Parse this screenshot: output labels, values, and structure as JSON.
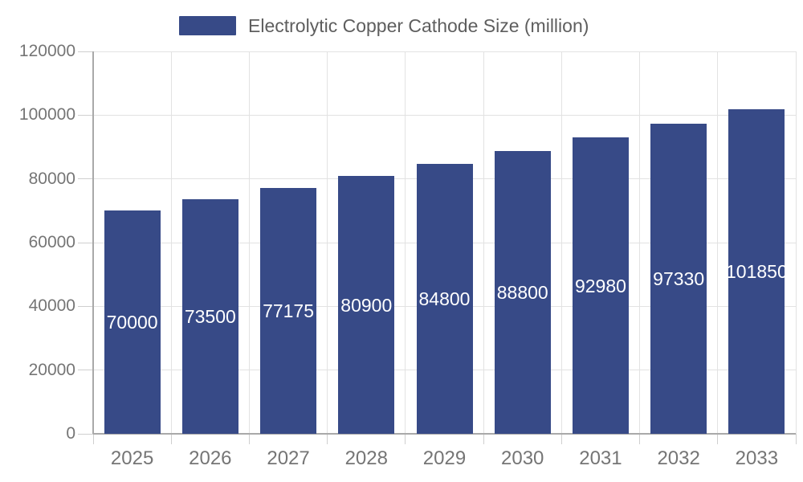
{
  "legend": {
    "label": "Electrolytic Copper Cathode Size (million)",
    "swatch_color": "#374a87"
  },
  "chart_data": {
    "type": "bar",
    "title": "",
    "xlabel": "",
    "ylabel": "",
    "categories": [
      "2025",
      "2026",
      "2027",
      "2028",
      "2029",
      "2030",
      "2031",
      "2032",
      "2033"
    ],
    "values": [
      70000,
      73500,
      77175,
      80900,
      84800,
      88800,
      92980,
      97330,
      101850
    ],
    "series_name": "Electrolytic Copper Cathode Size (million)",
    "ylim": [
      0,
      120000
    ],
    "ytick_step": 20000,
    "yticks": [
      "0",
      "20000",
      "40000",
      "60000",
      "80000",
      "100000",
      "120000"
    ],
    "grid": true,
    "legend_position": "top-center",
    "bar_color": "#374a87",
    "value_label_color": "#ffffff",
    "axis_text_color": "#757575",
    "gridline_color": "#e2e2e2",
    "axis_line_color": "#a9a9a9"
  }
}
